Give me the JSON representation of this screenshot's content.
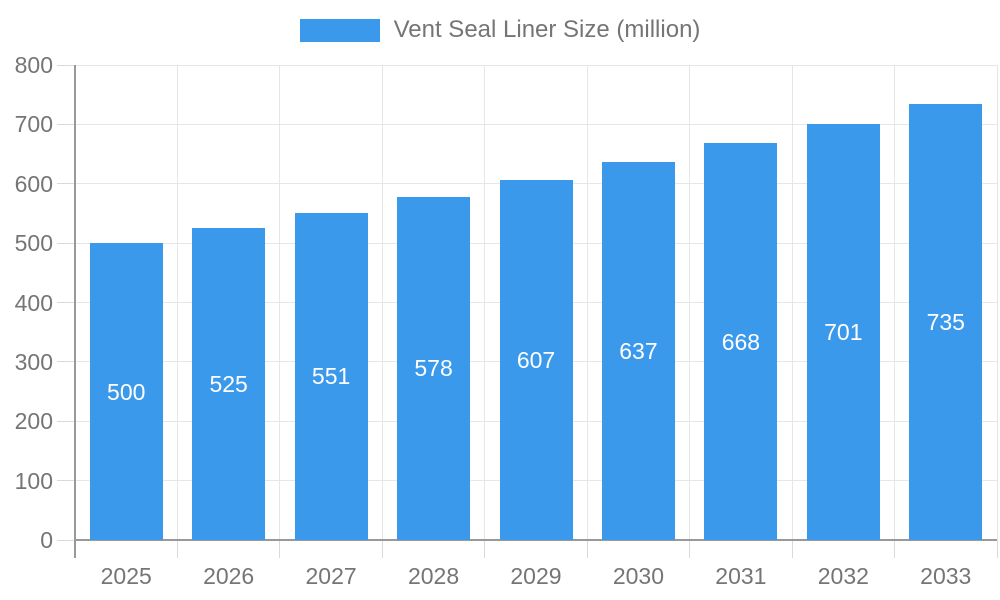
{
  "legend": {
    "label": "Vent Seal Liner Size (million)"
  },
  "chart_data": {
    "type": "bar",
    "title": "Vent Seal Liner Size (million)",
    "categories": [
      "2025",
      "2026",
      "2027",
      "2028",
      "2029",
      "2030",
      "2031",
      "2032",
      "2033"
    ],
    "values": [
      500,
      525,
      551,
      578,
      607,
      637,
      668,
      701,
      735
    ],
    "xlabel": "",
    "ylabel": "",
    "ylim": [
      0,
      800
    ],
    "y_tick_step": 100,
    "y_tick_labels": [
      "0",
      "100",
      "200",
      "300",
      "400",
      "500",
      "600",
      "700",
      "800"
    ],
    "grid": true,
    "value_labels": "inside-middle",
    "legend_position": "top",
    "colors": {
      "bar": "#3b99ec",
      "grid": "#e6e6e6",
      "tick": "#d9d9d9",
      "axis": "#999999",
      "tick_label": "#757575",
      "value_label": "#ffffff",
      "background": "#ffffff"
    }
  }
}
